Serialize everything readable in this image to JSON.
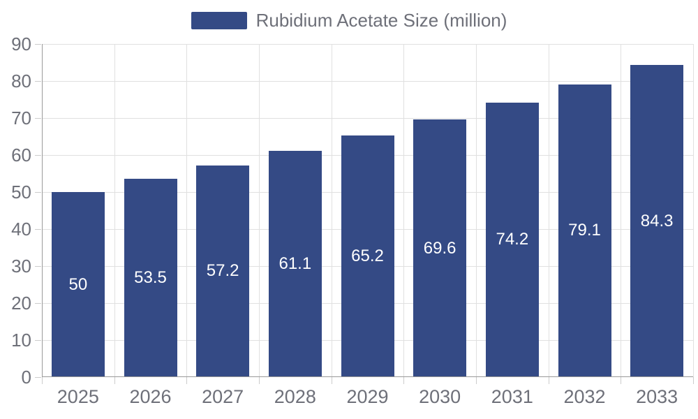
{
  "chart_data": {
    "type": "bar",
    "title": "Rubidium Acetate Size (million)",
    "categories": [
      "2025",
      "2026",
      "2027",
      "2028",
      "2029",
      "2030",
      "2031",
      "2032",
      "2033"
    ],
    "values": [
      50,
      53.5,
      57.2,
      61.1,
      65.2,
      69.6,
      74.2,
      79.1,
      84.3
    ],
    "value_labels": [
      "50",
      "53.5",
      "57.2",
      "61.1",
      "65.2",
      "69.6",
      "74.2",
      "79.1",
      "84.3"
    ],
    "ylabel": "",
    "xlabel": "",
    "ylim": [
      0,
      90
    ],
    "ytick_step": 10,
    "ytick_labels": [
      "0",
      "10",
      "20",
      "30",
      "40",
      "50",
      "60",
      "70",
      "80",
      "90"
    ],
    "grid": "on",
    "legend_position": "top-center",
    "colors": {
      "bar": "#344a85",
      "bar_value_label": "#ffffff",
      "axis_text": "#6e7079",
      "grid_line": "#e0e0e0",
      "axis_line": "#999999",
      "tick_line": "#cccccc"
    }
  }
}
